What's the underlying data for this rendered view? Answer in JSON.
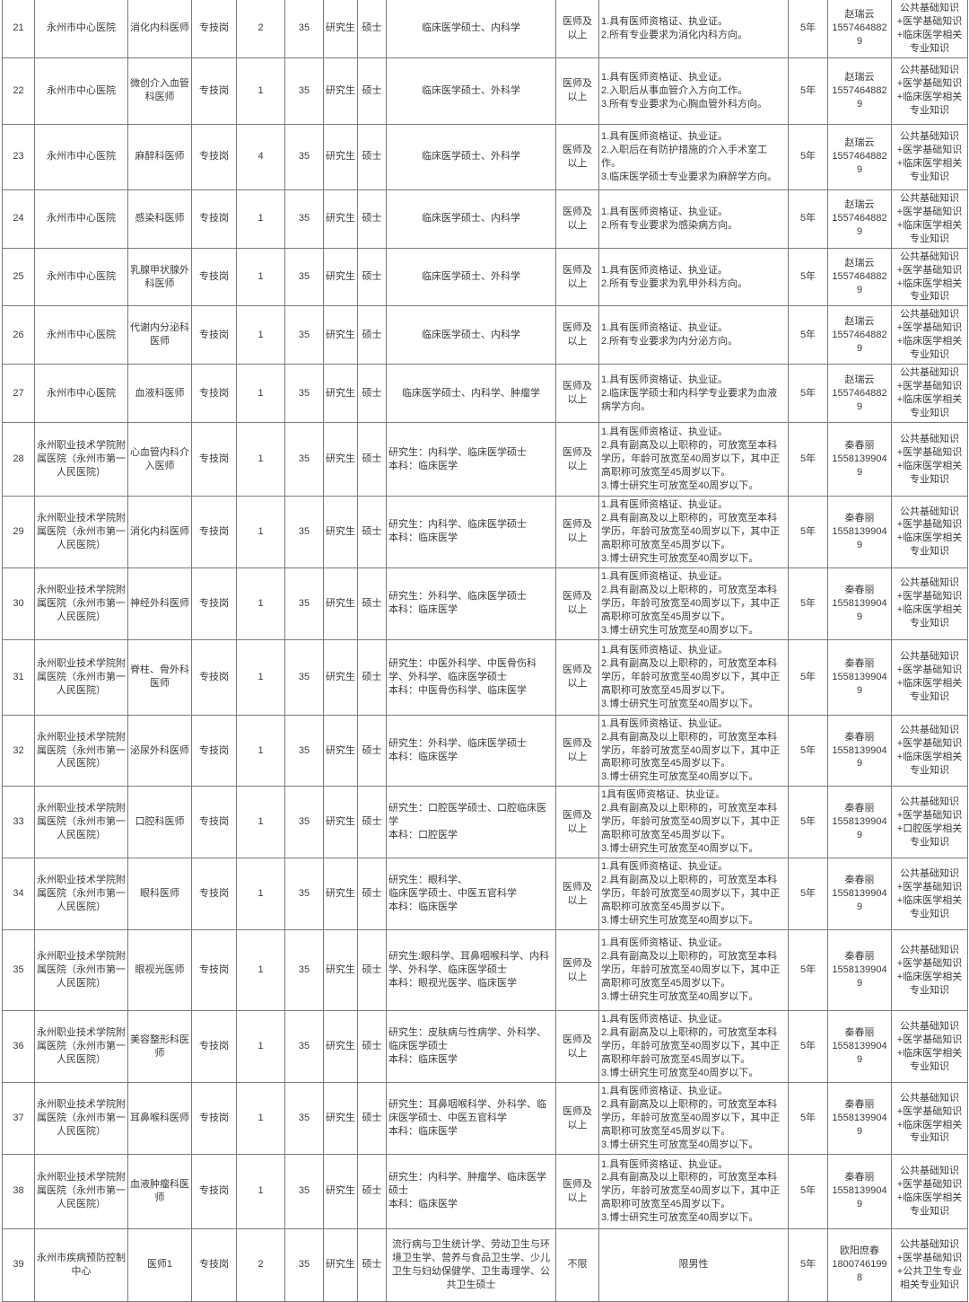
{
  "table": {
    "rows": [
      {
        "no": "21",
        "org": "永州市中心医院",
        "post": "消化内科医师",
        "type": "专技岗",
        "count": "2",
        "age": "35",
        "edu": "研究生",
        "degree": "硕士",
        "major": "临床医学硕士、内科学",
        "qual": "医师及以上",
        "req": "1.具有医师资格证、执业证。\n2.所有专业要求为消化内科方向。",
        "term": "5年",
        "contact": "赵瑞云",
        "phone": "15574648829",
        "exam": "公共基础知识+医学基础知识+临床医学相关专业知识"
      },
      {
        "no": "22",
        "org": "永州市中心医院",
        "post": "微创介入血管科医师",
        "type": "专技岗",
        "count": "1",
        "age": "35",
        "edu": "研究生",
        "degree": "硕士",
        "major": "临床医学硕士、外科学",
        "qual": "医师及以上",
        "req": "1.具有医师资格证、执业证。\n2.入职后从事血管介入方向工作。\n3.所有专业要求为心胸血管外科方向。",
        "term": "5年",
        "contact": "赵瑞云",
        "phone": "15574648829",
        "exam": "公共基础知识+医学基础知识+临床医学相关专业知识"
      },
      {
        "no": "23",
        "org": "永州市中心医院",
        "post": "麻醉科医师",
        "type": "专技岗",
        "count": "4",
        "age": "35",
        "edu": "研究生",
        "degree": "硕士",
        "major": "临床医学硕士、外科学",
        "qual": "医师及以上",
        "req": "1.具有医师资格证、执业证。\n2.入职后在有防护措施的介入手术室工作。\n3.临床医学硕士专业要求为麻醉学方向。",
        "term": "5年",
        "contact": "赵瑞云",
        "phone": "15574648829",
        "exam": "公共基础知识+医学基础知识+临床医学相关专业知识"
      },
      {
        "no": "24",
        "org": "永州市中心医院",
        "post": "感染科医师",
        "type": "专技岗",
        "count": "1",
        "age": "35",
        "edu": "研究生",
        "degree": "硕士",
        "major": "临床医学硕士、内科学",
        "qual": "医师及以上",
        "req": "1.具有医师资格证、执业证。\n2.所有专业要求为感染病方向。",
        "term": "5年",
        "contact": "赵瑞云",
        "phone": "15574648829",
        "exam": "公共基础知识+医学基础知识+临床医学相关专业知识"
      },
      {
        "no": "25",
        "org": "永州市中心医院",
        "post": "乳腺甲状腺外科医师",
        "type": "专技岗",
        "count": "1",
        "age": "35",
        "edu": "研究生",
        "degree": "硕士",
        "major": "临床医学硕士、外科学",
        "qual": "医师及以上",
        "req": "1.具有医师资格证、执业证。\n2.所有专业要求为乳甲外科方向。",
        "term": "5年",
        "contact": "赵瑞云",
        "phone": "15574648829",
        "exam": "公共基础知识+医学基础知识+临床医学相关专业知识"
      },
      {
        "no": "26",
        "org": "永州市中心医院",
        "post": "代谢内分泌科医师",
        "type": "专技岗",
        "count": "1",
        "age": "35",
        "edu": "研究生",
        "degree": "硕士",
        "major": "临床医学硕士、内科学",
        "qual": "医师及以上",
        "req": "1.具有医师资格证、执业证。\n2.所有专业要求为内分泌方向。",
        "term": "5年",
        "contact": "赵瑞云",
        "phone": "15574648829",
        "exam": "公共基础知识+医学基础知识+临床医学相关专业知识"
      },
      {
        "no": "27",
        "org": "永州市中心医院",
        "post": "血液科医师",
        "type": "专技岗",
        "count": "1",
        "age": "35",
        "edu": "研究生",
        "degree": "硕士",
        "major": "临床医学硕士、内科学、肿瘤学",
        "qual": "医师及以上",
        "req": "1.具有医师资格证、执业证。\n2.临床医学硕士和内科学专业要求为血液病学方向。",
        "term": "5年",
        "contact": "赵瑞云",
        "phone": "15574648829",
        "exam": "公共基础知识+医学基础知识+临床医学相关专业知识"
      },
      {
        "no": "28",
        "org": "永州职业技术学院附属医院（永州市第一人民医院）",
        "post": "心血管内科介入医师",
        "type": "专技岗",
        "count": "1",
        "age": "35",
        "edu": "研究生",
        "degree": "硕士",
        "major": "研究生：内科学、临床医学硕士\n本科：临床医学",
        "qual": "医师及以上",
        "req": "1.具有医师资格证、执业证。\n2.具有副高及以上职称的，可放宽至本科学历，年龄可放宽至40周岁以下，其中正高职称可放宽至45周岁以下。\n3.博士研究生可放宽至40周岁以下。",
        "term": "5年",
        "contact": "秦春丽",
        "phone": "15581399049",
        "exam": "公共基础知识+医学基础知识+临床医学相关专业知识"
      },
      {
        "no": "29",
        "org": "永州职业技术学院附属医院（永州市第一人民医院）",
        "post": "消化内科医师",
        "type": "专技岗",
        "count": "1",
        "age": "35",
        "edu": "研究生",
        "degree": "硕士",
        "major": "研究生：内科学、临床医学硕士\n本科：临床医学",
        "qual": "医师及以上",
        "req": "1.具有医师资格证、执业证。\n2.具有副高及以上职称的，可放宽至本科学历，年龄可放宽至40周岁以下，其中正高职称可放宽至45周岁以下。\n3.博士研究生可放宽至40周岁以下。",
        "term": "5年",
        "contact": "秦春丽",
        "phone": "15581399049",
        "exam": "公共基础知识+医学基础知识+临床医学相关专业知识"
      },
      {
        "no": "30",
        "org": "永州职业技术学院附属医院（永州市第一人民医院）",
        "post": "神经外科医师",
        "type": "专技岗",
        "count": "1",
        "age": "35",
        "edu": "研究生",
        "degree": "硕士",
        "major": "研究生：外科学、临床医学硕士\n本科：临床医学",
        "qual": "医师及以上",
        "req": "1.具有医师资格证、执业证。\n2.具有副高及以上职称的，可放宽至本科学历，年龄可放宽至40周岁以下，其中正高职称可放宽至45周岁以下。\n3.博士研究生可放宽至40周岁以下。",
        "term": "5年",
        "contact": "秦春丽",
        "phone": "15581399049",
        "exam": "公共基础知识+医学基础知识+临床医学相关专业知识"
      },
      {
        "no": "31",
        "org": "永州职业技术学院附属医院（永州市第一人民医院）",
        "post": "脊柱、骨外科医师",
        "type": "专技岗",
        "count": "1",
        "age": "35",
        "edu": "研究生",
        "degree": "硕士",
        "major": "研究生：中医外科学、中医骨伤科学、外科学、临床医学硕士\n本科：中医骨伤科学、临床医学",
        "qual": "医师及以上",
        "req": "1.具有医师资格证、执业证。\n2.具有副高及以上职称的，可放宽至本科学历，年龄可放宽至40周岁以下，其中正高职称可放宽至45周岁以下。\n3.博士研究生可放宽至40周岁以下。",
        "term": "5年",
        "contact": "秦春丽",
        "phone": "15581399049",
        "exam": "公共基础知识+医学基础知识+临床医学相关专业知识"
      },
      {
        "no": "32",
        "org": "永州职业技术学院附属医院（永州市第一人民医院）",
        "post": "泌尿外科医师",
        "type": "专技岗",
        "count": "1",
        "age": "35",
        "edu": "研究生",
        "degree": "硕士",
        "major": "研究生：外科学、临床医学硕士\n本科：临床医学",
        "qual": "医师及以上",
        "req": "1.具有医师资格证、执业证。\n2.具有副高及以上职称的，可放宽至本科学历，年龄可放宽至40周岁以下，其中正高职称可放宽至45周岁以下。\n3.博士研究生可放宽至40周岁以下。",
        "term": "5年",
        "contact": "秦春丽",
        "phone": "15581399049",
        "exam": "公共基础知识+医学基础知识+临床医学相关专业知识"
      },
      {
        "no": "33",
        "org": "永州职业技术学院附属医院（永州市第一人民医院）",
        "post": "口腔科医师",
        "type": "专技岗",
        "count": "1",
        "age": "35",
        "edu": "研究生",
        "degree": "硕士",
        "major": "研究生：口腔医学硕士、口腔临床医学\n本科：口腔医学",
        "qual": "医师及以上",
        "req": "1具有医师资格证、执业证。\n2.具有副高及以上职称的，可放宽至本科学历，年龄可放宽至40周岁以下，其中正高职称可放宽至45周岁以下。\n3.博士研究生可放宽至40周岁以下。",
        "term": "5年",
        "contact": "秦春丽",
        "phone": "15581399049",
        "exam": "公共基础知识+医学基础知识+口腔医学相关专业知识"
      },
      {
        "no": "34",
        "org": "永州职业技术学院附属医院（永州市第一人民医院）",
        "post": "眼科医师",
        "type": "专技岗",
        "count": "1",
        "age": "35",
        "edu": "研究生",
        "degree": "硕士",
        "major": "研究生：眼科学、\n临床医学硕士、中医五官科学\n本科：临床医学",
        "qual": "医师及以上",
        "req": "1.具有医师资格证、执业证。\n2.具有副高及以上职称的，可放宽至本科学历，年龄可放宽至40周岁以下，其中正高职称可放宽至45周岁以下。\n3.博士研究生可放宽至40周岁以下。",
        "term": "5年",
        "contact": "秦春丽",
        "phone": "15581399049",
        "exam": "公共基础知识+医学基础知识+临床医学相关专业知识"
      },
      {
        "no": "35",
        "org": "永州职业技术学院附属医院（永州市第一人民医院）",
        "post": "眼视光医师",
        "type": "专技岗",
        "count": "1",
        "age": "35",
        "edu": "研究生",
        "degree": "硕士",
        "major": "研究生:眼科学、耳鼻咽喉科学、内科学、外科学、临床医学硕士\n本科：眼视光医学、临床医学",
        "qual": "医师及以上",
        "req": "1.具有医师资格证、执业证。\n2.具有副高及以上职称的，可放宽至本科学历，年龄可放宽至40周岁以下，其中正高职称可放宽至45周岁以下。\n3.博士研究生可放宽至40周岁以下。",
        "term": "5年",
        "contact": "秦春丽",
        "phone": "15581399049",
        "exam": "公共基础知识+医学基础知识+临床医学相关专业知识"
      },
      {
        "no": "36",
        "org": "永州职业技术学院附属医院（永州市第一人民医院）",
        "post": "美容整形科医师",
        "type": "专技岗",
        "count": "1",
        "age": "35",
        "edu": "研究生",
        "degree": "硕士",
        "major": "研究生：皮肤病与性病学、外科学、临床医学硕士\n本科：临床医学",
        "qual": "医师及以上",
        "req": "1.具有医师资格证、执业证。\n2.具有副高及以上职称的，可放宽至本科学历，年龄可放宽至40周岁以下，其中正高职称年龄可放宽至45周岁以下。\n3.博士研究生可放宽至40周岁以下。",
        "term": "5年",
        "contact": "秦春丽",
        "phone": "15581399049",
        "exam": "公共基础知识+医学基础知识+临床医学相关专业知识"
      },
      {
        "no": "37",
        "org": "永州职业技术学院附属医院（永州市第一人民医院）",
        "post": "耳鼻喉科医师",
        "type": "专技岗",
        "count": "1",
        "age": "35",
        "edu": "研究生",
        "degree": "硕士",
        "major": "研究生：耳鼻咽喉科学、外科学、临床医学硕士、中医五官科学\n本科：临床医学",
        "qual": "医师及以上",
        "req": "1.具有医师资格证、执业证。\n2.具有副高及以上职称的，可放宽至本科学历，年龄可放宽至40周岁以下，其中正高职称可放宽至45周岁以下。\n3.博士研究生可放宽至40周岁以下。",
        "term": "5年",
        "contact": "秦春丽",
        "phone": "15581399049",
        "exam": "公共基础知识+医学基础知识+临床医学相关专业知识"
      },
      {
        "no": "38",
        "org": "永州职业技术学院附属医院（永州市第一人民医院）",
        "post": "血液肿瘤科医师",
        "type": "专技岗",
        "count": "1",
        "age": "35",
        "edu": "研究生",
        "degree": "硕士",
        "major": "研究生：内科学、肿瘤学、临床医学硕士\n本科：临床医学",
        "qual": "医师及以上",
        "req": "1.具有医师资格证、执业证。\n2.具有副高及以上职称的，可放宽至本科学历，年龄可放宽至40周岁以下，其中正高职称可放宽至45周岁以下。\n3.博士研究生可放宽至40周岁以下。",
        "term": "5年",
        "contact": "秦春丽",
        "phone": "15581399049",
        "exam": "公共基础知识+医学基础知识+临床医学相关专业知识"
      },
      {
        "no": "39",
        "org": "永州市疾病预防控制中心",
        "post": "医师1",
        "type": "专技岗",
        "count": "2",
        "age": "35",
        "edu": "研究生",
        "degree": "硕士",
        "major": "流行病与卫生统计学、劳动卫生与环境卫生学、营养与食品卫生学、少儿卫生与妇幼保健学、卫生毒理学、公共卫生硕士",
        "qual": "不限",
        "req": "限男性",
        "term": "5年",
        "contact": "欧阳庶春",
        "phone": "18007461998",
        "exam": "公共基础知识+医学基础知识+公共卫生专业相关专业知识"
      }
    ]
  }
}
